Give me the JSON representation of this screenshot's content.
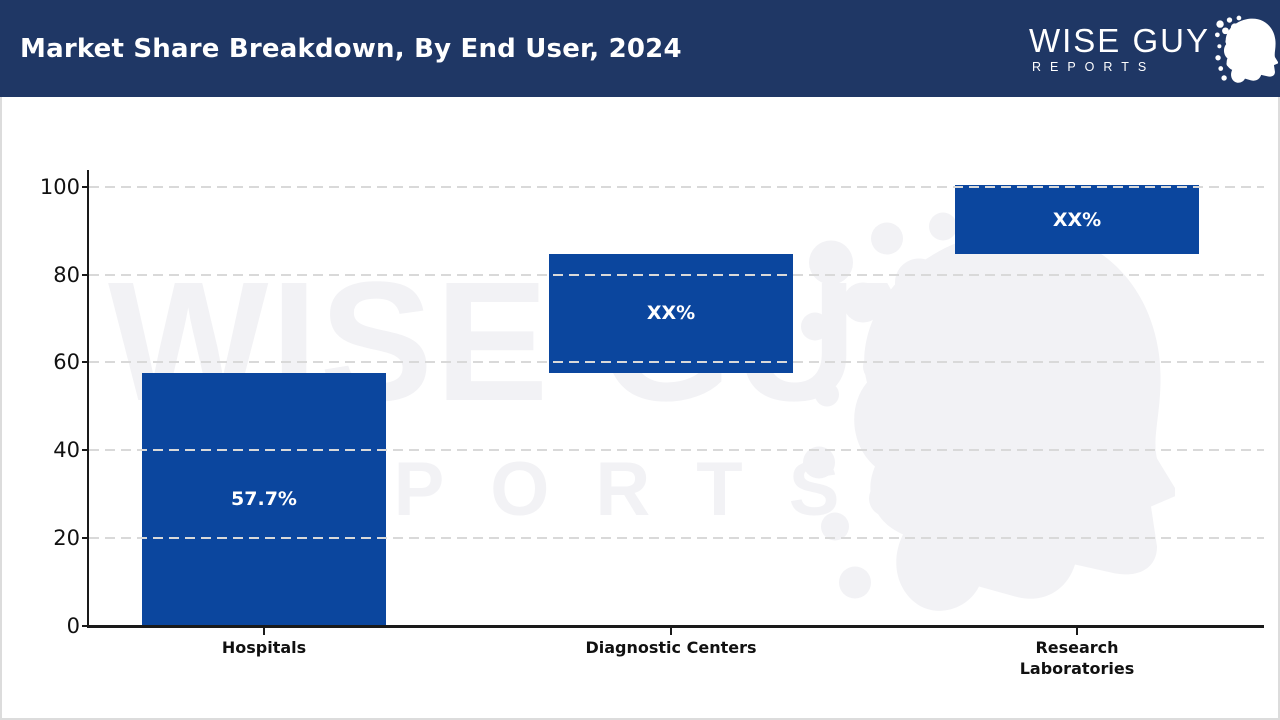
{
  "header": {
    "title": "Market Share Breakdown, By End User, 2024",
    "logo": {
      "line1": "WISE GUY",
      "line2": "REPORTS",
      "icon": "face-dots"
    }
  },
  "watermark": {
    "line1": "WISE GUY",
    "line2": "REPORTS",
    "icon": "face-dots"
  },
  "colors": {
    "header_bg": "#1f3765",
    "bar": "#0b469e",
    "grid": "#d9d9d9",
    "axis": "#1a1a1a",
    "watermark": "#f2f2f5",
    "value_label": "#ffffff"
  },
  "chart_data": {
    "type": "bar",
    "subtype": "waterfall",
    "title": "Market Share Breakdown, By End User, 2024",
    "xlabel": "",
    "ylabel": "",
    "categories": [
      "Hospitals",
      "Diagnostic Centers",
      "Research Laboratories"
    ],
    "categories_lines": [
      [
        "Hospitals"
      ],
      [
        "Diagnostic Centers"
      ],
      [
        "Research",
        "Laboratories"
      ]
    ],
    "bars": [
      {
        "category": "Hospitals",
        "start": 0,
        "end": 57.7,
        "value_label": "57.7%"
      },
      {
        "category": "Diagnostic Centers",
        "start": 57.7,
        "end": 84.6,
        "value_label": "XX%"
      },
      {
        "category": "Research Laboratories",
        "start": 84.6,
        "end": 100.3,
        "value_label": "XX%"
      }
    ],
    "yticks": [
      0,
      20,
      40,
      60,
      80,
      100
    ],
    "ylim": [
      0,
      104
    ],
    "grid": "horizontal-dashed",
    "legend": "none",
    "bar_color": "#0b469e"
  }
}
